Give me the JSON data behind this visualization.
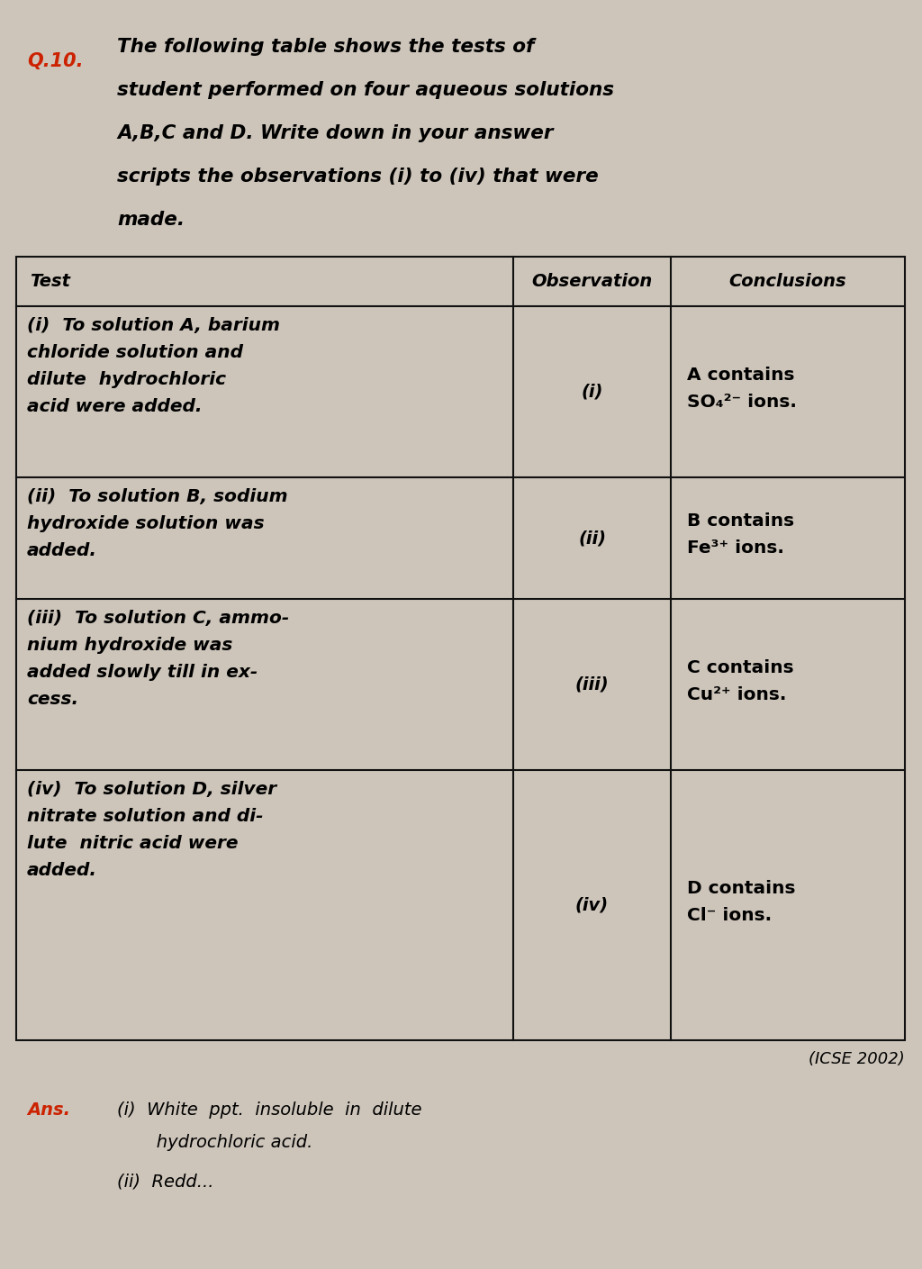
{
  "title_question": "Q.10.",
  "title_line1": "The following table shows the tests of",
  "title_line2": "student performed on four aqueous solutions",
  "title_line3": "A,B,C and D. Write down in your answer",
  "title_line4": "scripts the observations (i) to (iv) that were",
  "title_line5": "made.",
  "col_headers": [
    "Test",
    "Observation",
    "Conclusions"
  ],
  "rows": [
    {
      "test_lines": [
        "(i)  To solution A, barium",
        "chloride solution and",
        "dilute  hydrochloric",
        "acid were added."
      ],
      "observation": "(i)",
      "conclusion_lines": [
        "A contains",
        "SO₄²⁻ ions."
      ]
    },
    {
      "test_lines": [
        "(ii)  To solution B, sodium",
        "hydroxide solution was",
        "added."
      ],
      "observation": "(ii)",
      "conclusion_lines": [
        "B contains",
        "Fe³⁺ ions."
      ]
    },
    {
      "test_lines": [
        "(iii)  To solution C, ammo-",
        "nium hydroxide was",
        "added slowly till in ex-",
        "cess."
      ],
      "observation": "(iii)",
      "conclusion_lines": [
        "C contains",
        "Cu²⁺ ions."
      ]
    },
    {
      "test_lines": [
        "(iv)  To solution D, silver",
        "nitrate solution and di-",
        "lute  nitric acid were",
        "added."
      ],
      "observation": "(iv)",
      "conclusion_lines": [
        "D contains",
        "Cl⁻ ions."
      ]
    }
  ],
  "icse_text": "(ICSE 2002)",
  "ans_label": "Ans.",
  "ans_line1": "(i)  White  ppt.  insoluble  in  dilute",
  "ans_line2": "       hydrochloric acid.",
  "ans_line3": "(ii)  Redd...",
  "bg_color": "#cdc5ba",
  "table_bg": "#c5bdb2",
  "line_color": "#111111"
}
